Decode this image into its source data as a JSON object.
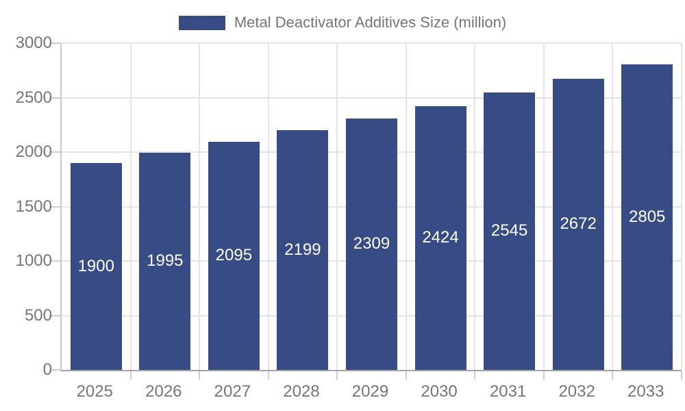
{
  "chart_data": {
    "type": "bar",
    "title": "Metal Deactivator Additives Size (million)",
    "categories": [
      "2025",
      "2026",
      "2027",
      "2028",
      "2029",
      "2030",
      "2031",
      "2032",
      "2033"
    ],
    "values": [
      1900,
      1995,
      2095,
      2199,
      2309,
      2424,
      2545,
      2672,
      2805
    ],
    "bar_labels": [
      1900,
      1995,
      2095,
      2199,
      2309,
      2424,
      2545,
      2672,
      2805
    ],
    "xlabel": "",
    "ylabel": "",
    "ylim": [
      0,
      3000
    ],
    "yticks": [
      0,
      500,
      1000,
      1500,
      2000,
      2500,
      3000
    ],
    "grid": "on",
    "legend_position": "top-center",
    "colors": {
      "bar": "#374B85",
      "bar_label_text": "#ffffff",
      "grid": "#e4e4e4",
      "axis_bottom": "#a5a5a5",
      "axis_left": "#c8c8c8",
      "tick": "#cccccc",
      "tick_label_text": "#757575",
      "legend_text": "#757575"
    }
  }
}
